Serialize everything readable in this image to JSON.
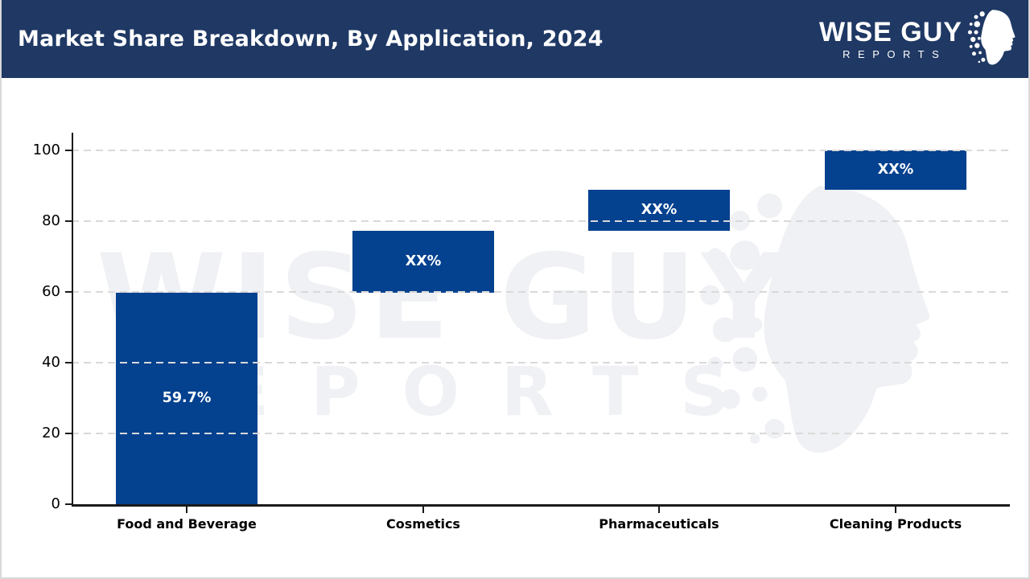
{
  "header": {
    "title": "Market Share Breakdown, By Application, 2024",
    "logo": {
      "line1": "WISE GUY",
      "line2": "REPORTS"
    }
  },
  "watermark": {
    "line1": "WISE GUY",
    "line2": "REPORTS"
  },
  "colors": {
    "header_bg": "#1f3864",
    "bar": "#04418f",
    "grid": "#d9d9d9",
    "axis": "#1a1a1a",
    "watermark": "#f0f1f4",
    "border": "#d9d9d9",
    "bar_label": "#ffffff"
  },
  "chart_data": {
    "type": "bar",
    "subtype": "waterfall",
    "title": "Market Share Breakdown, By Application, 2024",
    "categories": [
      "Food and Beverage",
      "Cosmetics",
      "Pharmaceuticals",
      "Cleaning Products"
    ],
    "series": [
      {
        "name": "Market Share",
        "segments": [
          {
            "start": 0,
            "end": 59.7,
            "label": "59.7%"
          },
          {
            "start": 59.7,
            "end": 77.2,
            "label": "XX%"
          },
          {
            "start": 77.2,
            "end": 88.9,
            "label": "XX%"
          },
          {
            "start": 88.9,
            "end": 100,
            "label": "XX%"
          }
        ]
      }
    ],
    "xlabel": "",
    "ylabel": "",
    "ylim": [
      0,
      100
    ],
    "yticks": [
      0,
      20,
      40,
      60,
      80,
      100
    ],
    "grid": "dashed-horizontal-over-bars",
    "legend": "none"
  }
}
